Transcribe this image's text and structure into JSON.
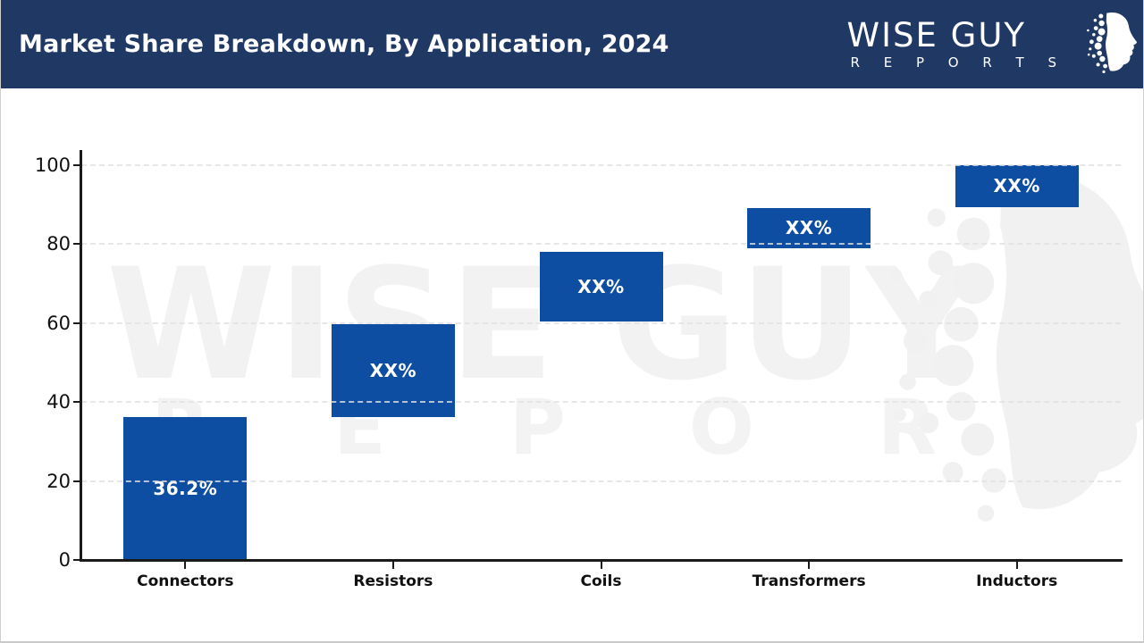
{
  "header": {
    "title": "Market Share Breakdown, By Application, 2024",
    "bg_color": "#203864"
  },
  "logo": {
    "line1": "WISE GUY",
    "line2": "R E P O R T S",
    "face_icon": "dotted-face-profile"
  },
  "watermark": {
    "line1": "WISE GUY",
    "line2": "R E P O R T S"
  },
  "chart_data": {
    "type": "bar",
    "subtype": "waterfall-floating-bars",
    "title": "Market Share Breakdown, By Application, 2024",
    "categories": [
      "Connectors",
      "Resistors",
      "Coils",
      "Transformers",
      "Inductors"
    ],
    "segments": [
      {
        "category": "Connectors",
        "start": 0,
        "end": 36.2,
        "label": "36.2%"
      },
      {
        "category": "Resistors",
        "start": 36.2,
        "end": 59.8,
        "label": "XX%"
      },
      {
        "category": "Coils",
        "start": 60.3,
        "end": 78.1,
        "label": "XX%"
      },
      {
        "category": "Transformers",
        "start": 79.0,
        "end": 89.1,
        "label": "XX%"
      },
      {
        "category": "Inductors",
        "start": 89.4,
        "end": 100,
        "label": "XX%"
      }
    ],
    "xlabel": "",
    "ylabel": "",
    "ylim": [
      0,
      100
    ],
    "yticks": [
      0,
      20,
      40,
      60,
      80,
      100
    ],
    "grid": "dashed horizontal",
    "legend": "none",
    "bar_color": "#0d4da2",
    "bar_label_color": "#ffffff",
    "axis_color": "#1a1a1a"
  }
}
